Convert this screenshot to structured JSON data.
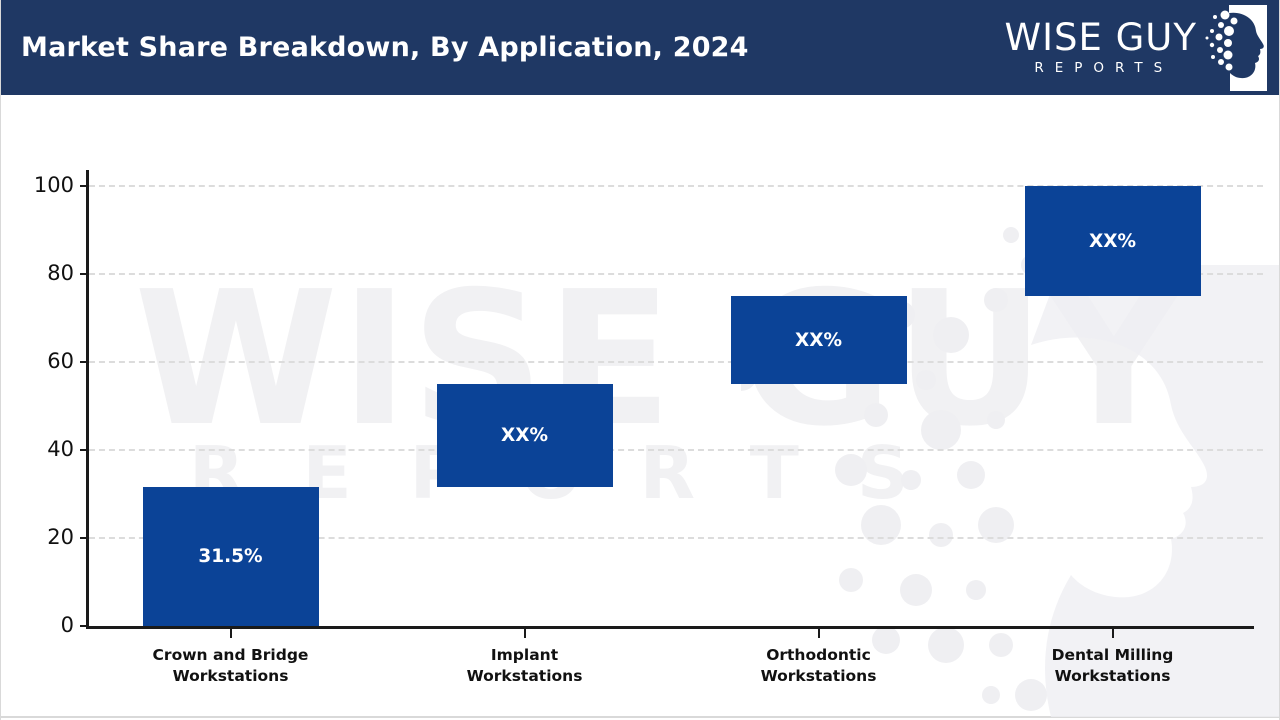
{
  "header": {
    "title": "Market Share Breakdown, By Application, 2024",
    "logo": {
      "line1": "WISE GUY",
      "line2": "REPORTS"
    }
  },
  "watermark": {
    "line1": "WISE GUY",
    "line2": "REPORTS"
  },
  "chart_data": {
    "type": "bar",
    "subtype": "floating-segment (waterfall style) market share bars",
    "title": "Market Share Breakdown, By Application, 2024",
    "categories": [
      [
        "Crown and Bridge",
        "Workstations"
      ],
      [
        "Implant",
        "Workstations"
      ],
      [
        "Orthodontic",
        "Workstations"
      ],
      [
        "Dental Milling",
        "Workstations"
      ]
    ],
    "bars": [
      {
        "category": "Crown and Bridge Workstations",
        "start": 0,
        "end": 31.5,
        "label": "31.5%"
      },
      {
        "category": "Implant Workstations",
        "start": 31.5,
        "end": 55,
        "label": "XX%"
      },
      {
        "category": "Orthodontic Workstations",
        "start": 55,
        "end": 75,
        "label": "XX%"
      },
      {
        "category": "Dental Milling Workstations",
        "start": 75,
        "end": 100,
        "label": "XX%"
      }
    ],
    "yticks": [
      0,
      20,
      40,
      60,
      80,
      100
    ],
    "ylim": [
      0,
      100
    ],
    "xlabel": "",
    "ylabel": "",
    "grid": "horizontal dashed",
    "legend": "none",
    "colors": {
      "bar": "#0b4397",
      "value_label": "#ffffff",
      "header_background": "#1f3864",
      "axis": "#1a1a1a",
      "gridline": "#dcdcdc",
      "watermark": "#f1f1f3"
    }
  }
}
